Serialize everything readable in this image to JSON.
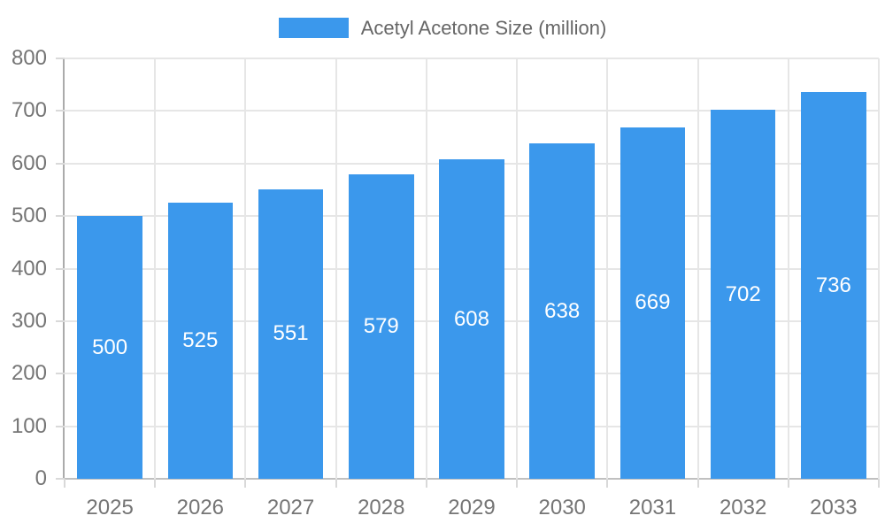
{
  "chart_data": {
    "type": "bar",
    "title": "",
    "categories": [
      "2025",
      "2026",
      "2027",
      "2028",
      "2029",
      "2030",
      "2031",
      "2032",
      "2033"
    ],
    "series": [
      {
        "name": "Acetyl Acetone Size (million)",
        "values": [
          500,
          525,
          551,
          579,
          608,
          638,
          669,
          702,
          736
        ]
      }
    ],
    "xlabel": "",
    "ylabel": "",
    "ylim": [
      0,
      800
    ],
    "yticks": [
      0,
      100,
      200,
      300,
      400,
      500,
      600,
      700,
      800
    ],
    "grid": "on",
    "legend_position": "top",
    "value_labels": "inside-center"
  },
  "colors": {
    "bar": "#3b98ec",
    "value_label": "#ffffff",
    "tick_label": "#757575",
    "legend_label": "#666666",
    "gridline": "#e6e6e6",
    "axis_line": "#ababab",
    "zero_line": "#c0c0c0"
  }
}
